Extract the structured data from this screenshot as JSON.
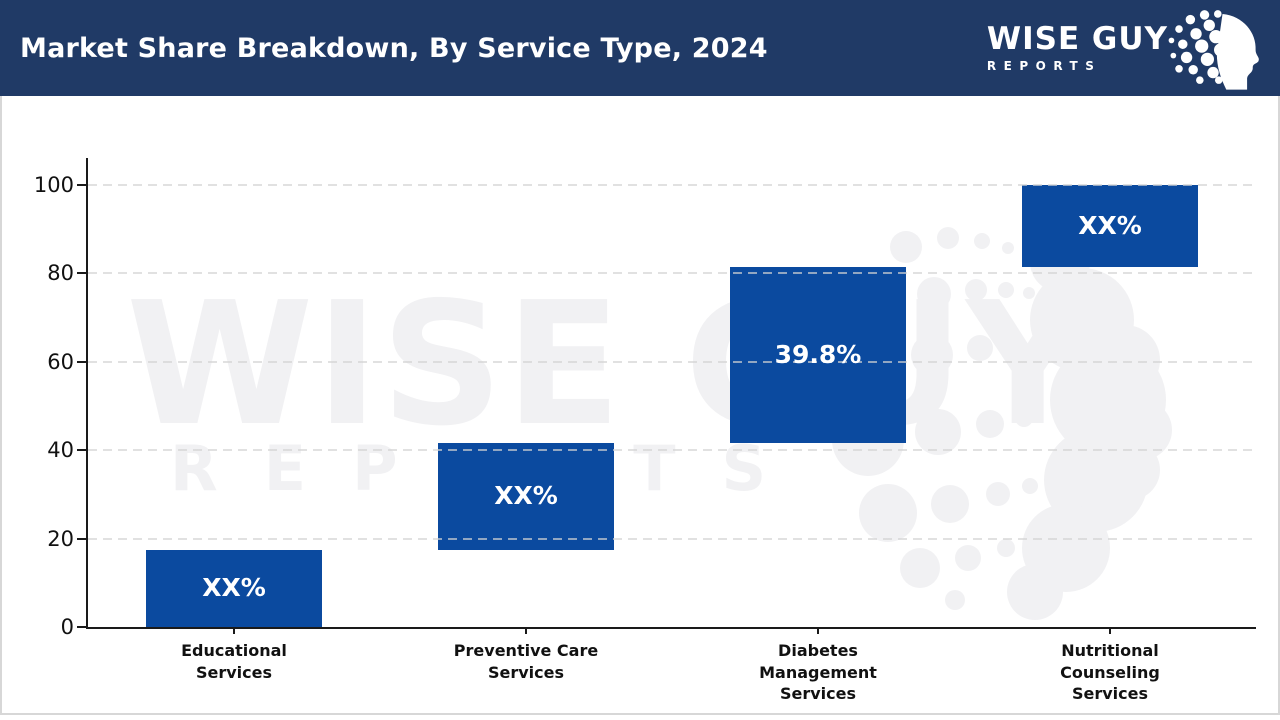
{
  "header": {
    "title": "Market Share Breakdown, By Service Type, 2024",
    "background_color": "#203a66",
    "logo": {
      "wordmark": "WISE GUY",
      "subtext": "REPORTS"
    }
  },
  "watermark": {
    "line1": "WISE GUY",
    "line2": "REPORTS"
  },
  "chart_data": {
    "type": "bar",
    "subtype": "waterfall",
    "title": "Market Share Breakdown, By Service Type, 2024",
    "xlabel": "",
    "ylabel": "",
    "categories": [
      "Educational\nServices",
      "Preventive Care\nServices",
      "Diabetes\nManagement\nServices",
      "Nutritional\nCounseling\nServices"
    ],
    "bars": [
      {
        "label": "XX%",
        "start": 0,
        "end": 17.5
      },
      {
        "label": "XX%",
        "start": 17.5,
        "end": 41.7
      },
      {
        "label": "39.8%",
        "start": 41.7,
        "end": 81.5
      },
      {
        "label": "XX%",
        "start": 81.5,
        "end": 100
      }
    ],
    "ylim": [
      0,
      100
    ],
    "yticks": [
      0,
      20,
      40,
      60,
      80,
      100
    ],
    "grid": "horizontal-dashed",
    "legend": "none",
    "bar_color": "#0b4a9f",
    "bar_label_color": "#ffffff"
  }
}
